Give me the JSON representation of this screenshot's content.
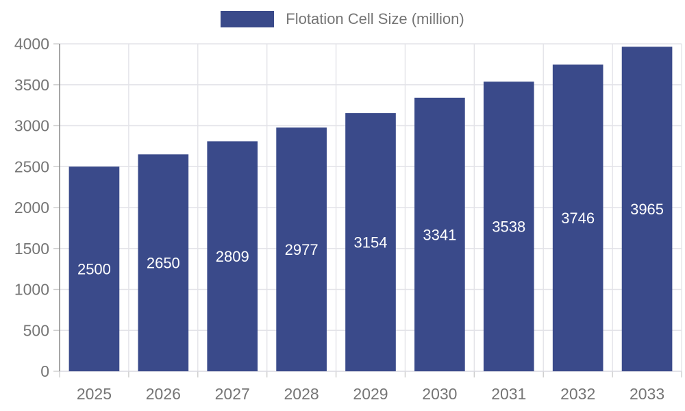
{
  "legend": {
    "label": "Flotation Cell Size (million)"
  },
  "chart_data": {
    "type": "bar",
    "title": "",
    "categories": [
      "2025",
      "2026",
      "2027",
      "2028",
      "2029",
      "2030",
      "2031",
      "2032",
      "2033"
    ],
    "series": [
      {
        "name": "Flotation Cell Size (million)",
        "values": [
          2500,
          2650,
          2809,
          2977,
          3154,
          3341,
          3538,
          3746,
          3965
        ]
      }
    ],
    "xlabel": "",
    "ylabel": "",
    "ylim": [
      0,
      4000
    ],
    "ytick_step": 500,
    "grid": true,
    "legend_position": "top-center",
    "value_labels": "inside-center",
    "colors": {
      "bar": "#3A4A8A",
      "value_label": "#FFFFFF",
      "axis_label": "#757575",
      "legend_label": "#757575",
      "grid_line": "#E3E3E8",
      "tick_line": "#CCCCCC",
      "y_axis_line": "#8F8F8F",
      "x_axis_line": "#D9D9E0"
    }
  }
}
